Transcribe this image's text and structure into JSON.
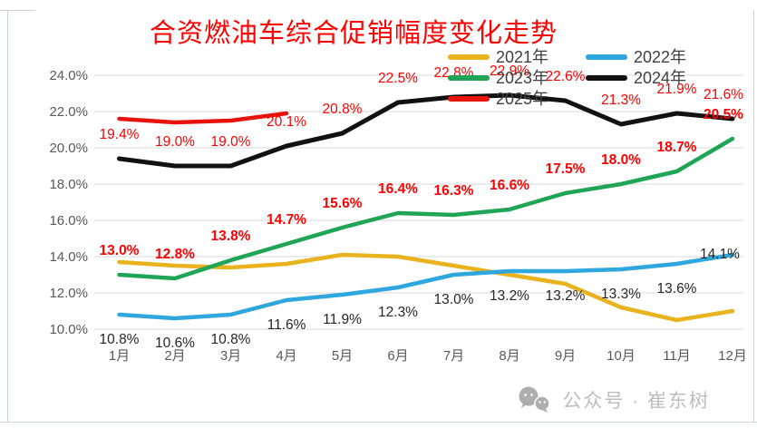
{
  "watermark": {
    "text": "公众号 · 崔东树"
  },
  "chart_data": {
    "type": "line",
    "title": "合资燃油车综合促销幅度变化走势",
    "xlabel": "",
    "ylabel": "",
    "grid": true,
    "legend_position": "top",
    "categories": [
      "1月",
      "2月",
      "3月",
      "4月",
      "5月",
      "6月",
      "7月",
      "8月",
      "9月",
      "10月",
      "11月",
      "12月"
    ],
    "y_axis": {
      "min": 10,
      "max": 24,
      "step": 2,
      "tick_labels": [
        "10.0%",
        "12.0%",
        "14.0%",
        "16.0%",
        "18.0%",
        "20.0%",
        "22.0%",
        "24.0%"
      ]
    },
    "series": [
      {
        "name": "2021年",
        "color": "#e8b31e",
        "values": [
          13.7,
          13.5,
          13.4,
          13.6,
          14.1,
          14.0,
          13.5,
          13.0,
          12.5,
          11.2,
          10.5,
          11.0
        ],
        "labels": {
          "show": false
        }
      },
      {
        "name": "2022年",
        "color": "#2ea6de",
        "values": [
          10.8,
          10.6,
          10.8,
          11.6,
          11.9,
          12.3,
          13.0,
          13.2,
          13.2,
          13.3,
          13.6,
          14.1
        ],
        "labels": {
          "show": true,
          "color": "#262626",
          "bold": false,
          "side": "below"
        }
      },
      {
        "name": "2023年",
        "color": "#1fa555",
        "values": [
          13.0,
          12.8,
          13.8,
          14.7,
          15.6,
          16.4,
          16.3,
          16.6,
          17.5,
          18.0,
          18.7,
          20.5
        ],
        "labels": {
          "show": true,
          "color": "#ff0000",
          "bold": true,
          "side": "above"
        }
      },
      {
        "name": "2024年",
        "color": "#111111",
        "values": [
          19.4,
          19.0,
          19.0,
          20.1,
          20.8,
          22.5,
          22.8,
          22.9,
          22.6,
          21.3,
          21.9,
          21.6
        ],
        "labels": {
          "show": true,
          "color": "#ff0000",
          "bold": false,
          "side": "above"
        }
      },
      {
        "name": "2025年",
        "color": "#e8140c",
        "values": [
          21.6,
          21.4,
          21.5,
          21.9,
          null,
          null,
          null,
          null,
          null,
          null,
          null,
          null
        ],
        "labels": {
          "show": false
        }
      }
    ]
  }
}
